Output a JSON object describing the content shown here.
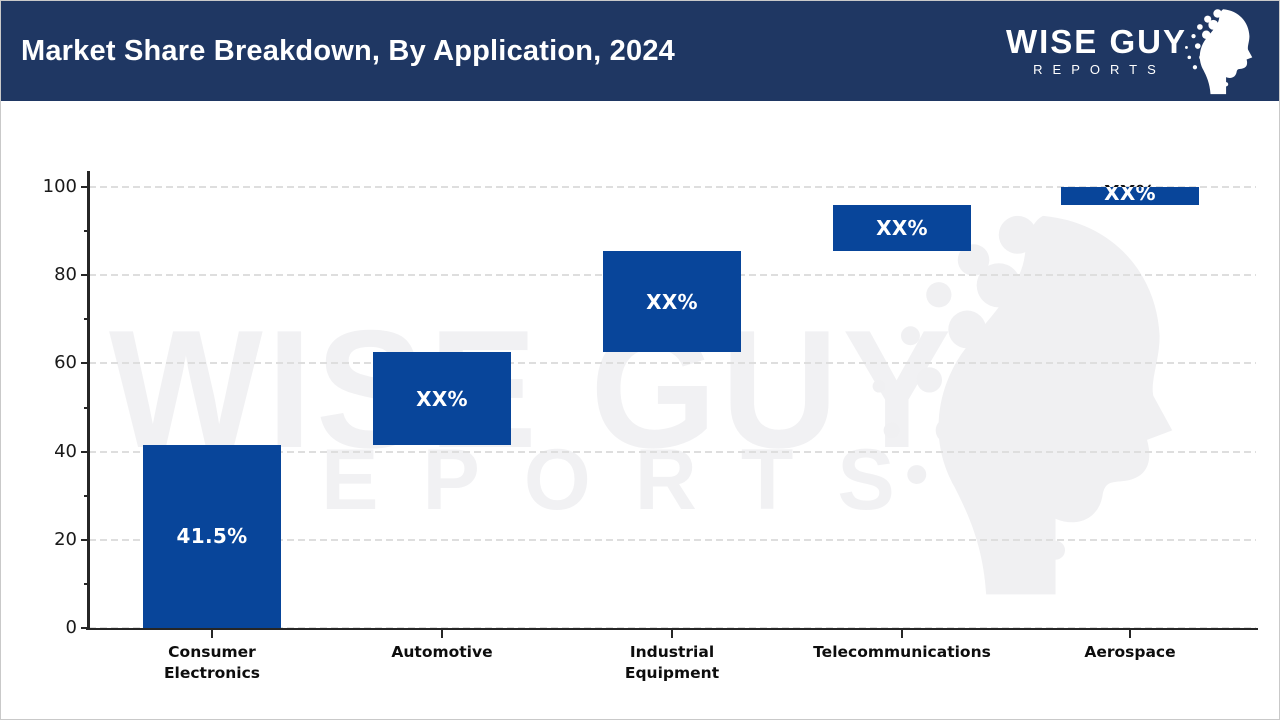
{
  "header": {
    "title": "Market Share Breakdown, By Application, 2024"
  },
  "logo": {
    "line1": "WISE GUY",
    "line2": "REPORTS"
  },
  "watermark": {
    "line1": "WISE GUY",
    "line2": "REPORTS"
  },
  "colors": {
    "header_bg": "#1f3763",
    "bar": "#08459a",
    "grid": "#dedede",
    "axis": "#262626",
    "bar_label": "#ffffff",
    "watermark": "#f1f1f3",
    "page_border": "#c9c9c9"
  },
  "chart_data": {
    "type": "bar",
    "subtype": "waterfall",
    "title": "Market Share Breakdown, By Application, 2024",
    "xlabel": "",
    "ylabel": "",
    "ylim": [
      0,
      105
    ],
    "grid": "horizontal-dashed",
    "legend": "none",
    "categories": [
      "Consumer Electronics",
      "Automotive",
      "Industrial Equipment",
      "Telecommunications",
      "Aerospace"
    ],
    "x_tick_labels": [
      "Consumer\nElectronics",
      "Automotive",
      "Industrial\nEquipment",
      "Telecommunications",
      "Aerospace"
    ],
    "yticks": [
      0,
      20,
      40,
      60,
      80,
      100
    ],
    "minor_yticks": [
      10,
      30,
      50,
      70,
      90
    ],
    "segments": [
      {
        "category": "Consumer Electronics",
        "start": 0,
        "end": 41.5,
        "label": "41.5%"
      },
      {
        "category": "Automotive",
        "start": 41.5,
        "end": 62.5,
        "label": "XX%"
      },
      {
        "category": "Industrial Equipment",
        "start": 62.5,
        "end": 85.5,
        "label": "XX%"
      },
      {
        "category": "Telecommunications",
        "start": 85.5,
        "end": 96,
        "label": "XX%"
      },
      {
        "category": "Aerospace",
        "start": 96,
        "end": 100,
        "label": "XX%"
      }
    ]
  }
}
